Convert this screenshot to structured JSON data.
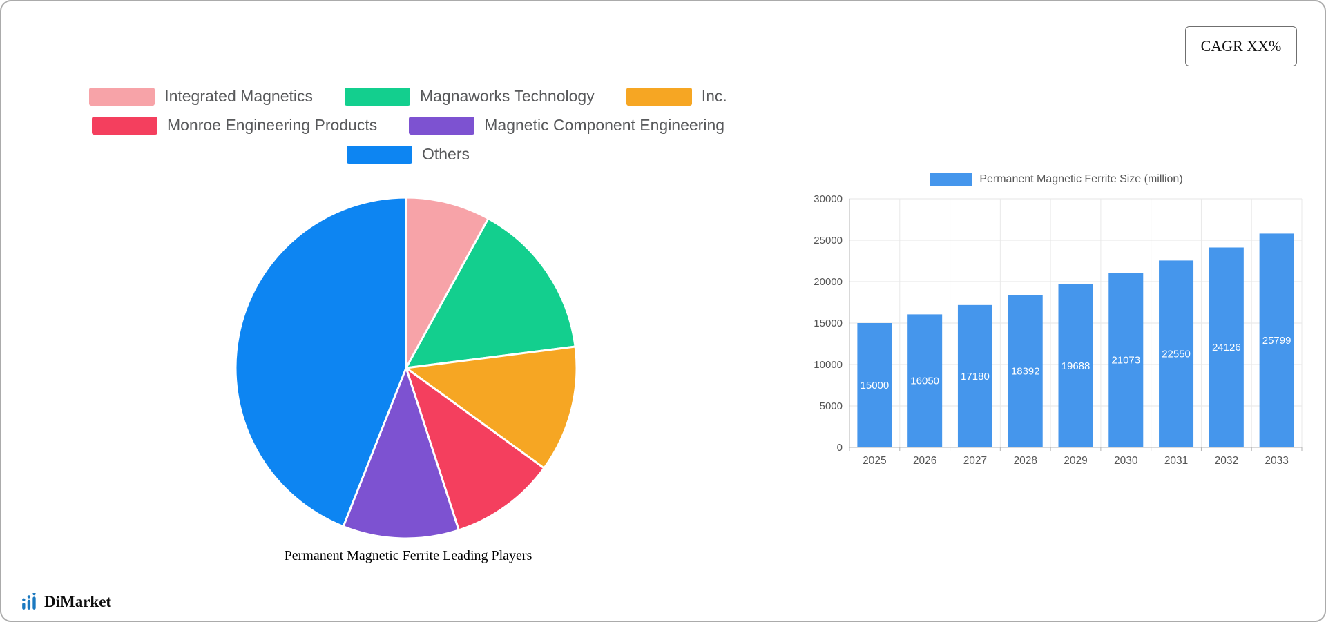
{
  "page": {
    "cagr_label": "CAGR XX%",
    "brand": "DiMarket",
    "brand_icon_color": "#1b79c0"
  },
  "chart_data": [
    {
      "type": "pie",
      "title": "Permanent Magnetic Ferrite Leading Players",
      "labels": [
        "Integrated Magnetics",
        "Magnaworks Technology",
        "Inc.",
        "Monroe Engineering Products",
        "Magnetic Component Engineering",
        "Others"
      ],
      "values": [
        8,
        15,
        12,
        10,
        11,
        44
      ],
      "colors": [
        "#f7a3a8",
        "#13cf8e",
        "#f6a623",
        "#f43f5e",
        "#7d52d1",
        "#0d85f2"
      ],
      "legend_rows": [
        3,
        2,
        1
      ],
      "legend_position": "top",
      "start_angle_deg": -90,
      "direction": "clockwise"
    },
    {
      "type": "bar",
      "legend_label": "Permanent Magnetic Ferrite Size (million)",
      "categories": [
        "2025",
        "2026",
        "2027",
        "2028",
        "2029",
        "2030",
        "2031",
        "2032",
        "2033"
      ],
      "values": [
        15000,
        16050,
        17180,
        18392,
        19688,
        21073,
        22550,
        24126,
        25799
      ],
      "ylim": [
        0,
        30000
      ],
      "yticks": [
        0,
        5000,
        10000,
        15000,
        20000,
        25000,
        30000
      ],
      "bar_color": "#4596ec",
      "value_label_color": "#ffffff",
      "grid": true,
      "legend_position": "top"
    }
  ]
}
